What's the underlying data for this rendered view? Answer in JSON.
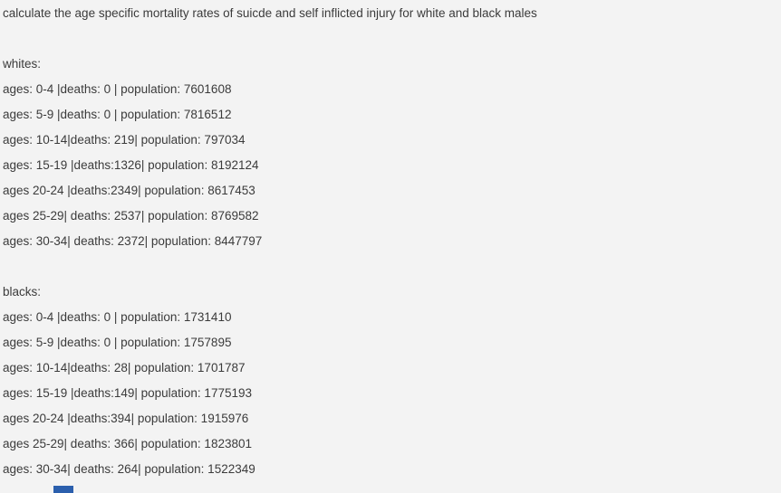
{
  "document": {
    "title_line": "calculate the age specific mortality rates of suicde and self inflicted injury for white and black males",
    "whites": {
      "header": "whites:",
      "rows": [
        "ages: 0-4 |deaths: 0 | population: 7601608",
        "ages: 5-9 |deaths: 0 | population: 7816512",
        "ages: 10-14|deaths: 219| population: 797034",
        "ages: 15-19 |deaths:1326| population: 8192124",
        "ages 20-24 |deaths:2349| population: 8617453",
        "ages 25-29| deaths: 2537| population: 8769582",
        "ages: 30-34| deaths: 2372| population: 8447797"
      ]
    },
    "blacks": {
      "header": "blacks:",
      "rows": [
        "ages: 0-4 |deaths: 0 | population: 1731410",
        "ages: 5-9 |deaths: 0 | population: 1757895",
        "ages: 10-14|deaths: 28| population: 1701787",
        "ages: 15-19 |deaths:149| population: 1775193",
        "ages 20-24 |deaths:394| population: 1915976",
        "ages 25-29| deaths: 366| population: 1823801",
        "ages: 30-34| deaths: 264| population: 1522349"
      ]
    },
    "colors": {
      "background": "#f3f3f3",
      "text": "#3b3b3b",
      "selection_blue": "#2b5fad"
    }
  }
}
